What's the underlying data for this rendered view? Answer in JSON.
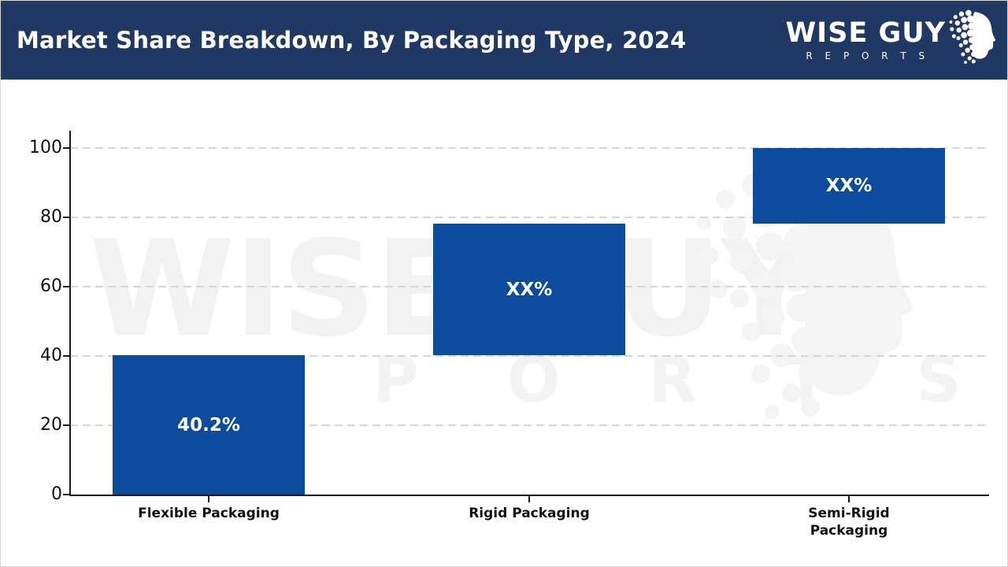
{
  "header": {
    "title": "Market Share Breakdown, By Packaging Type, 2024",
    "logo": {
      "name": "WISE GUY",
      "sub": "R E P O R T S"
    }
  },
  "watermark": {
    "line1": "WISE GUY",
    "line2": "R E P O R T S"
  },
  "chart_data": {
    "type": "bar",
    "variant": "stacked-waterfall",
    "title": "Market Share Breakdown, By Packaging Type, 2024",
    "categories": [
      "Flexible Packaging",
      "Rigid Packaging",
      "Semi-Rigid Packaging"
    ],
    "categories_display": [
      [
        "Flexible Packaging"
      ],
      [
        "Rigid Packaging"
      ],
      [
        "Semi-Rigid",
        "Packaging"
      ]
    ],
    "bars": [
      {
        "category": "Flexible Packaging",
        "from": 0,
        "to": 40.2,
        "label": "40.2%"
      },
      {
        "category": "Rigid Packaging",
        "from": 40.2,
        "to": 78.2,
        "label": "XX%"
      },
      {
        "category": "Semi-Rigid Packaging",
        "from": 78.2,
        "to": 100,
        "label": "XX%"
      }
    ],
    "xlabel": "",
    "ylabel": "",
    "ylim": [
      0,
      100
    ],
    "yticks": [
      0,
      20,
      40,
      60,
      80,
      100
    ],
    "grid": "horizontal-dashed",
    "legend": "none",
    "bar_color": "#0c4c9e"
  },
  "colors": {
    "header_bg": "#203864",
    "bar": "#0c4c9e",
    "grid": "#d5d5d5",
    "axis": "#1a1a1a",
    "watermark_text": "#f2f2f2",
    "watermark_head": "#f4f4f4",
    "title_text": "#ffffff",
    "bar_label_text": "#ffffff"
  }
}
